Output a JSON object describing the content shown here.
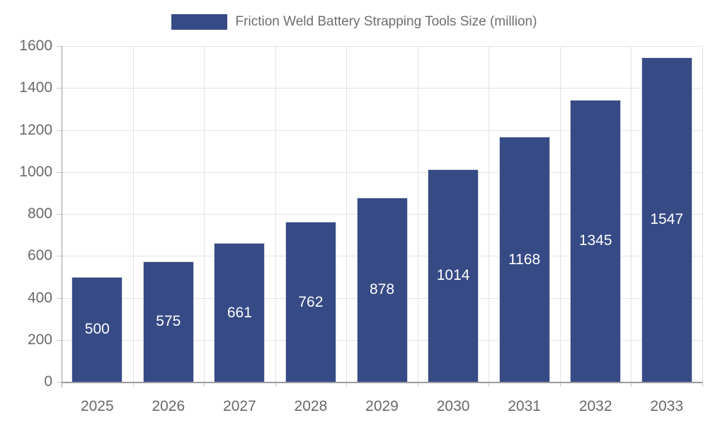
{
  "chart_data": {
    "type": "bar",
    "title": "Friction Weld Battery Strapping Tools Size (million)",
    "categories": [
      "2025",
      "2026",
      "2027",
      "2028",
      "2029",
      "2030",
      "2031",
      "2032",
      "2033"
    ],
    "values": [
      500,
      575,
      661,
      762,
      878,
      1014,
      1168,
      1345,
      1547
    ],
    "xlabel": "",
    "ylabel": "",
    "ylim": [
      0,
      1600
    ],
    "ytick_step": 200,
    "grid": true,
    "legend_position": "top",
    "colors": {
      "bar_fill": "#364A85",
      "value_label": "#ffffff",
      "gridline": "#e2e2e2",
      "tick_mark": "#c9c9c9",
      "axis_line": "#9a9aa0",
      "tick_label": "#686868",
      "legend_text": "#6e6e6e",
      "background": "#ffffff"
    }
  }
}
